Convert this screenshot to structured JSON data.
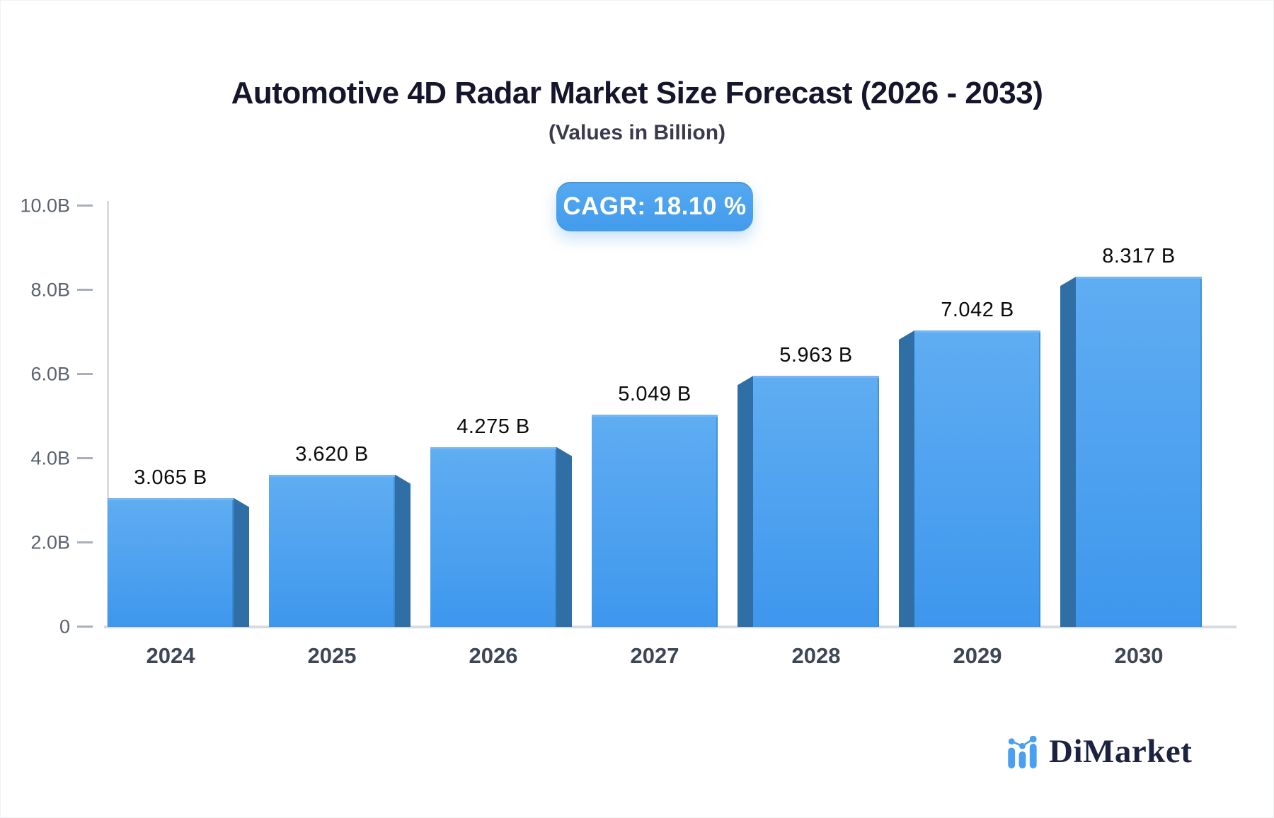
{
  "title": "Automotive 4D Radar Market Size Forecast (2026 - 2033)",
  "subtitle": "(Values in Billion)",
  "cagr_badge": "CAGR: 18.10 %",
  "brand": {
    "name": "DiMarket"
  },
  "colors": {
    "badge_top": "#55a9f0",
    "badge_bottom": "#429bec",
    "bar_face_top": "#5fadf2",
    "bar_face_bottom": "#3e97ed",
    "bar_side": "#2f6fa6",
    "axis_line": "#d8dce2",
    "tick_color": "#a9b0bb",
    "brand_blue": "#4aa0f0"
  },
  "chart_data": {
    "type": "bar",
    "title": "Automotive 4D Radar Market Size Forecast (2026 - 2033)",
    "subtitle": "(Values in Billion)",
    "categories": [
      "2024",
      "2025",
      "2026",
      "2027",
      "2028",
      "2029",
      "2030"
    ],
    "values": [
      3.065,
      3.62,
      4.275,
      5.049,
      5.963,
      7.042,
      8.317
    ],
    "value_labels": [
      "3.065 B",
      "3.620 B",
      "4.275 B",
      "5.049 B",
      "5.963 B",
      "7.042 B",
      "8.317 B"
    ],
    "ylim": [
      0,
      10
    ],
    "yticks": [
      {
        "value": 10,
        "label": "10.0B"
      },
      {
        "value": 8,
        "label": "8.0B"
      },
      {
        "value": 6,
        "label": "6.0B"
      },
      {
        "value": 4,
        "label": "4.0B"
      },
      {
        "value": 2,
        "label": "2.0B"
      },
      {
        "value": 0,
        "label": "0"
      }
    ],
    "grid": false,
    "legend": false,
    "annotation": "CAGR: 18.10 %"
  }
}
